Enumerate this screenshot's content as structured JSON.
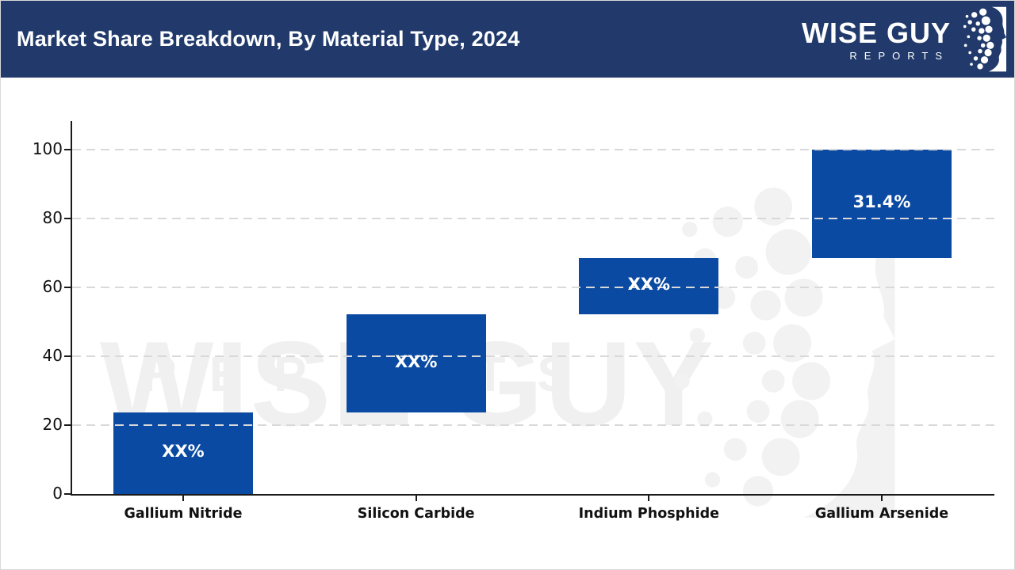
{
  "header": {
    "title": "Market Share Breakdown, By Material Type, 2024",
    "bg_color": "#213a6b",
    "logo": {
      "wordmark": "WISE GUY",
      "subtext": "REPORTS"
    }
  },
  "watermark": {
    "line1": "WISE GUY",
    "line2": "REPORTS"
  },
  "chart_data": {
    "type": "bar",
    "subtype": "floating-segment-waterfall",
    "title": "Market Share Breakdown, By Material Type, 2024",
    "categories": [
      "Gallium Nitride",
      "Silicon Carbide",
      "Indium Phosphide",
      "Gallium Arsenide"
    ],
    "series": [
      {
        "name": "Market Share",
        "segments": [
          {
            "category": "Gallium Nitride",
            "start": 0,
            "end": 23.7,
            "label": "XX%"
          },
          {
            "category": "Silicon Carbide",
            "start": 23.7,
            "end": 52.2,
            "label": "XX%"
          },
          {
            "category": "Indium Phosphide",
            "start": 52.2,
            "end": 68.6,
            "label": "XX%"
          },
          {
            "category": "Gallium Arsenide",
            "start": 68.6,
            "end": 100,
            "label": "31.4%"
          }
        ]
      }
    ],
    "xlabel": "",
    "ylabel": "",
    "yticks": [
      0,
      20,
      40,
      60,
      80,
      100
    ],
    "ylim": [
      0,
      108
    ],
    "bar_color": "#0b4aa2",
    "grid": {
      "axis": "y",
      "style": "dashed",
      "color": "#d9d9d9"
    },
    "legend": "none"
  }
}
